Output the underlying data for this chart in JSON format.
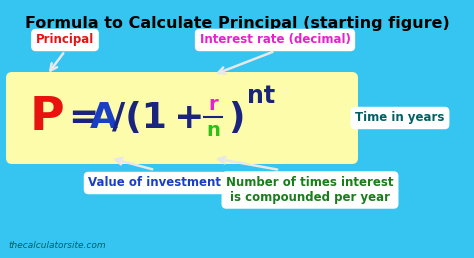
{
  "title": "Formula to Calculate Principal (starting figure)",
  "title_fontsize": 11.5,
  "title_color": "#000000",
  "bg_color": "#35c5f0",
  "formula_box_color": "#fdfcaa",
  "label_P": "P",
  "label_P_color": "#e8130e",
  "label_A": "A",
  "label_A_color": "#1a3fc4",
  "label_r": "r",
  "label_r_color": "#e91ecd",
  "label_n": "n",
  "label_n_color": "#2dc118",
  "label_nt": "nt",
  "label_nt_color": "#1a237e",
  "label_rest_color": "#1a237e",
  "pill_principal_text": "Principal",
  "pill_principal_color": "#e8130e",
  "pill_interest_text": "Interest rate (decimal)",
  "pill_interest_color": "#e91ecd",
  "pill_time_text": "Time in years",
  "pill_time_color": "#006064",
  "pill_value_text": "Value of investment",
  "pill_value_color": "#1a3fc4",
  "pill_compound_text": "Number of times interest\nis compounded per year",
  "pill_compound_color": "#1a7c1a",
  "pill_bg": "#ffffff",
  "watermark": "thecalculatorsite.com",
  "watermark_color": "#006064",
  "arrow_color": "#e8e8e8"
}
